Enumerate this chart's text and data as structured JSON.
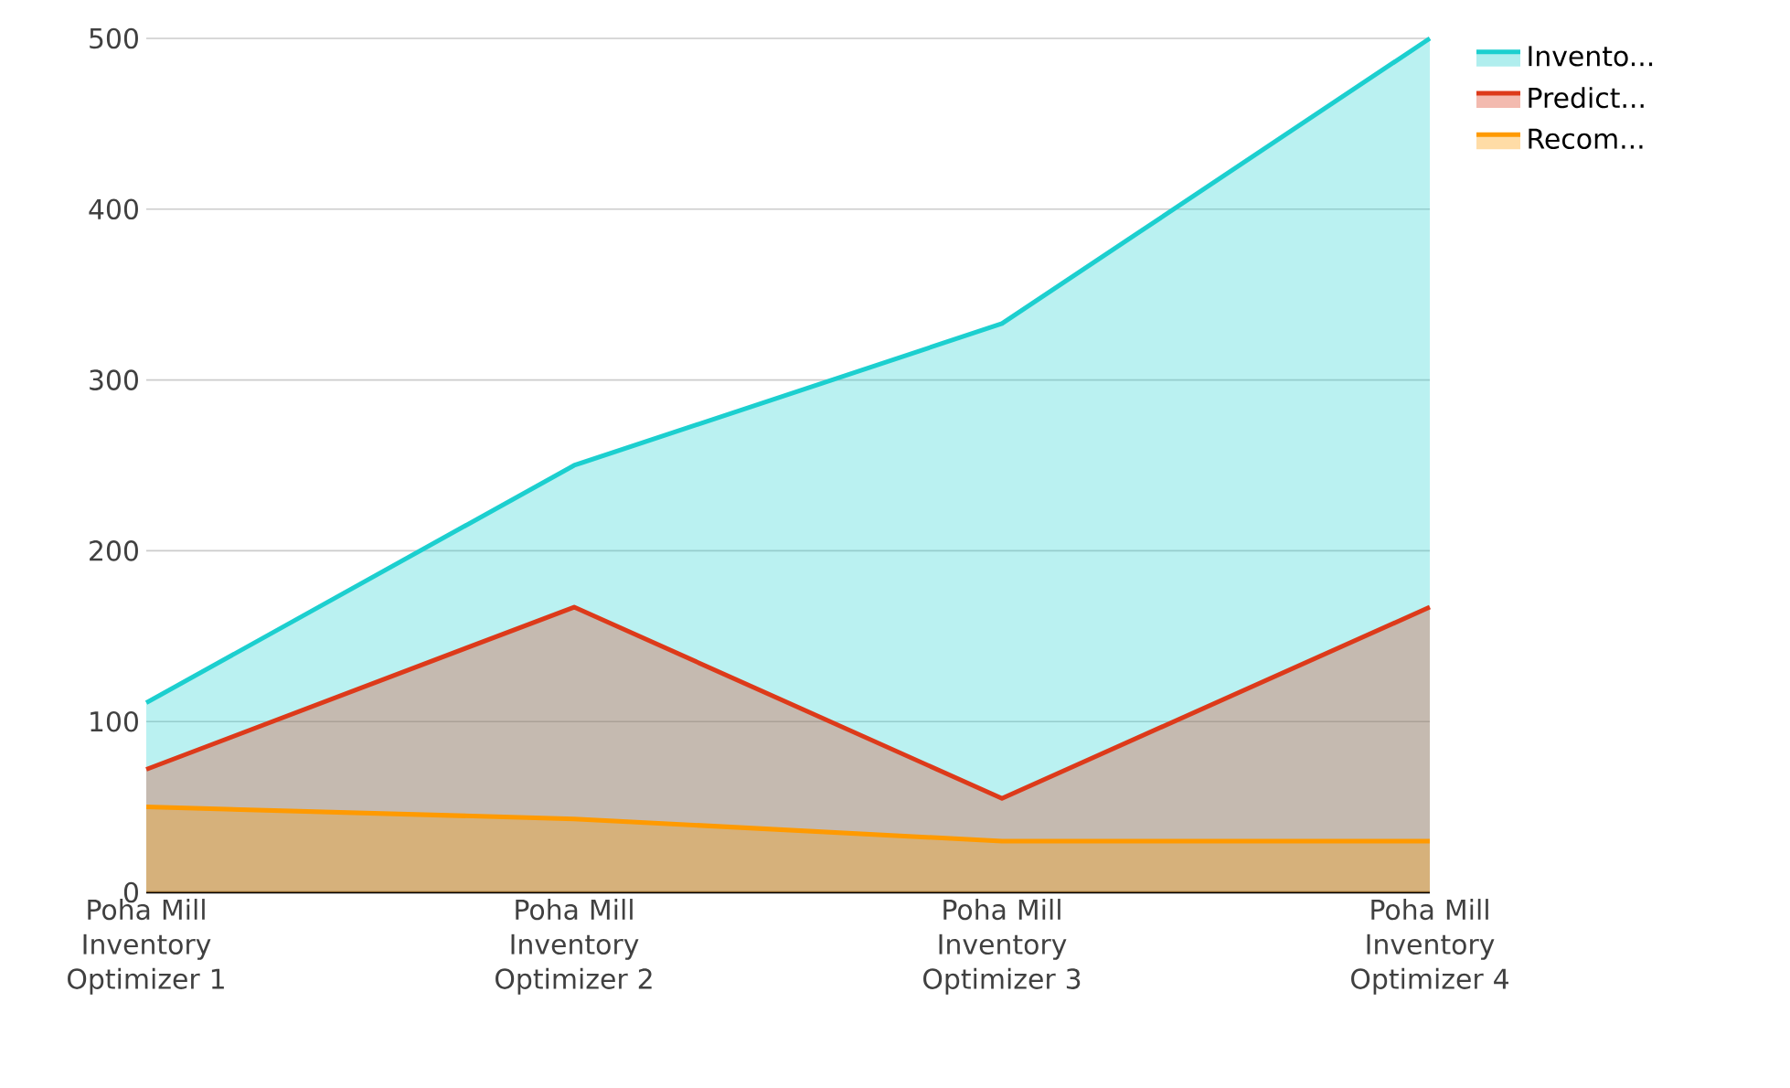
{
  "chart_data": {
    "type": "area",
    "categories": [
      "Poha Mill Inventory Optimizer 1",
      "Poha Mill Inventory Optimizer 2",
      "Poha Mill Inventory Optimizer 3",
      "Poha Mill Inventory Optimizer 4"
    ],
    "series": [
      {
        "name": "Invento...",
        "color": "#1ccfcf",
        "values": [
          111,
          250,
          333,
          500
        ]
      },
      {
        "name": "Predict...",
        "color": "#dd3a1a",
        "values": [
          72,
          167,
          55,
          167
        ]
      },
      {
        "name": "Recom...",
        "color": "#ff9a00",
        "values": [
          50,
          43,
          30,
          30
        ]
      }
    ],
    "ylim": [
      0,
      500
    ],
    "yticks": [
      0,
      100,
      200,
      300,
      400,
      500
    ],
    "grid": "y",
    "legend": "top right"
  }
}
